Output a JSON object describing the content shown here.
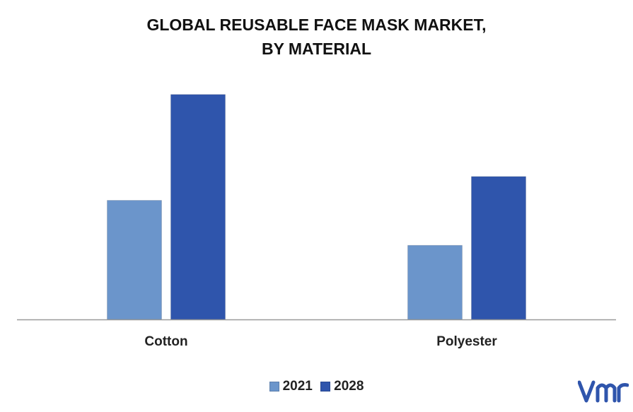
{
  "title_lines": [
    "GLOBAL REUSABLE FACE MASK MARKET,",
    "BY MATERIAL"
  ],
  "chart_data": {
    "type": "bar",
    "categories": [
      "Cotton",
      "Polyester"
    ],
    "series": [
      {
        "name": "2021",
        "values": [
          45,
          28
        ],
        "color": "#6b95cb"
      },
      {
        "name": "2028",
        "values": [
          85,
          54
        ],
        "color": "#2f55ac"
      }
    ],
    "ylim": [
      0,
      90
    ],
    "grid": false,
    "legend": "bottom",
    "xlabel": "",
    "ylabel": ""
  },
  "brand": {
    "logo": "vmr-logo",
    "color": "#2f55ac"
  }
}
